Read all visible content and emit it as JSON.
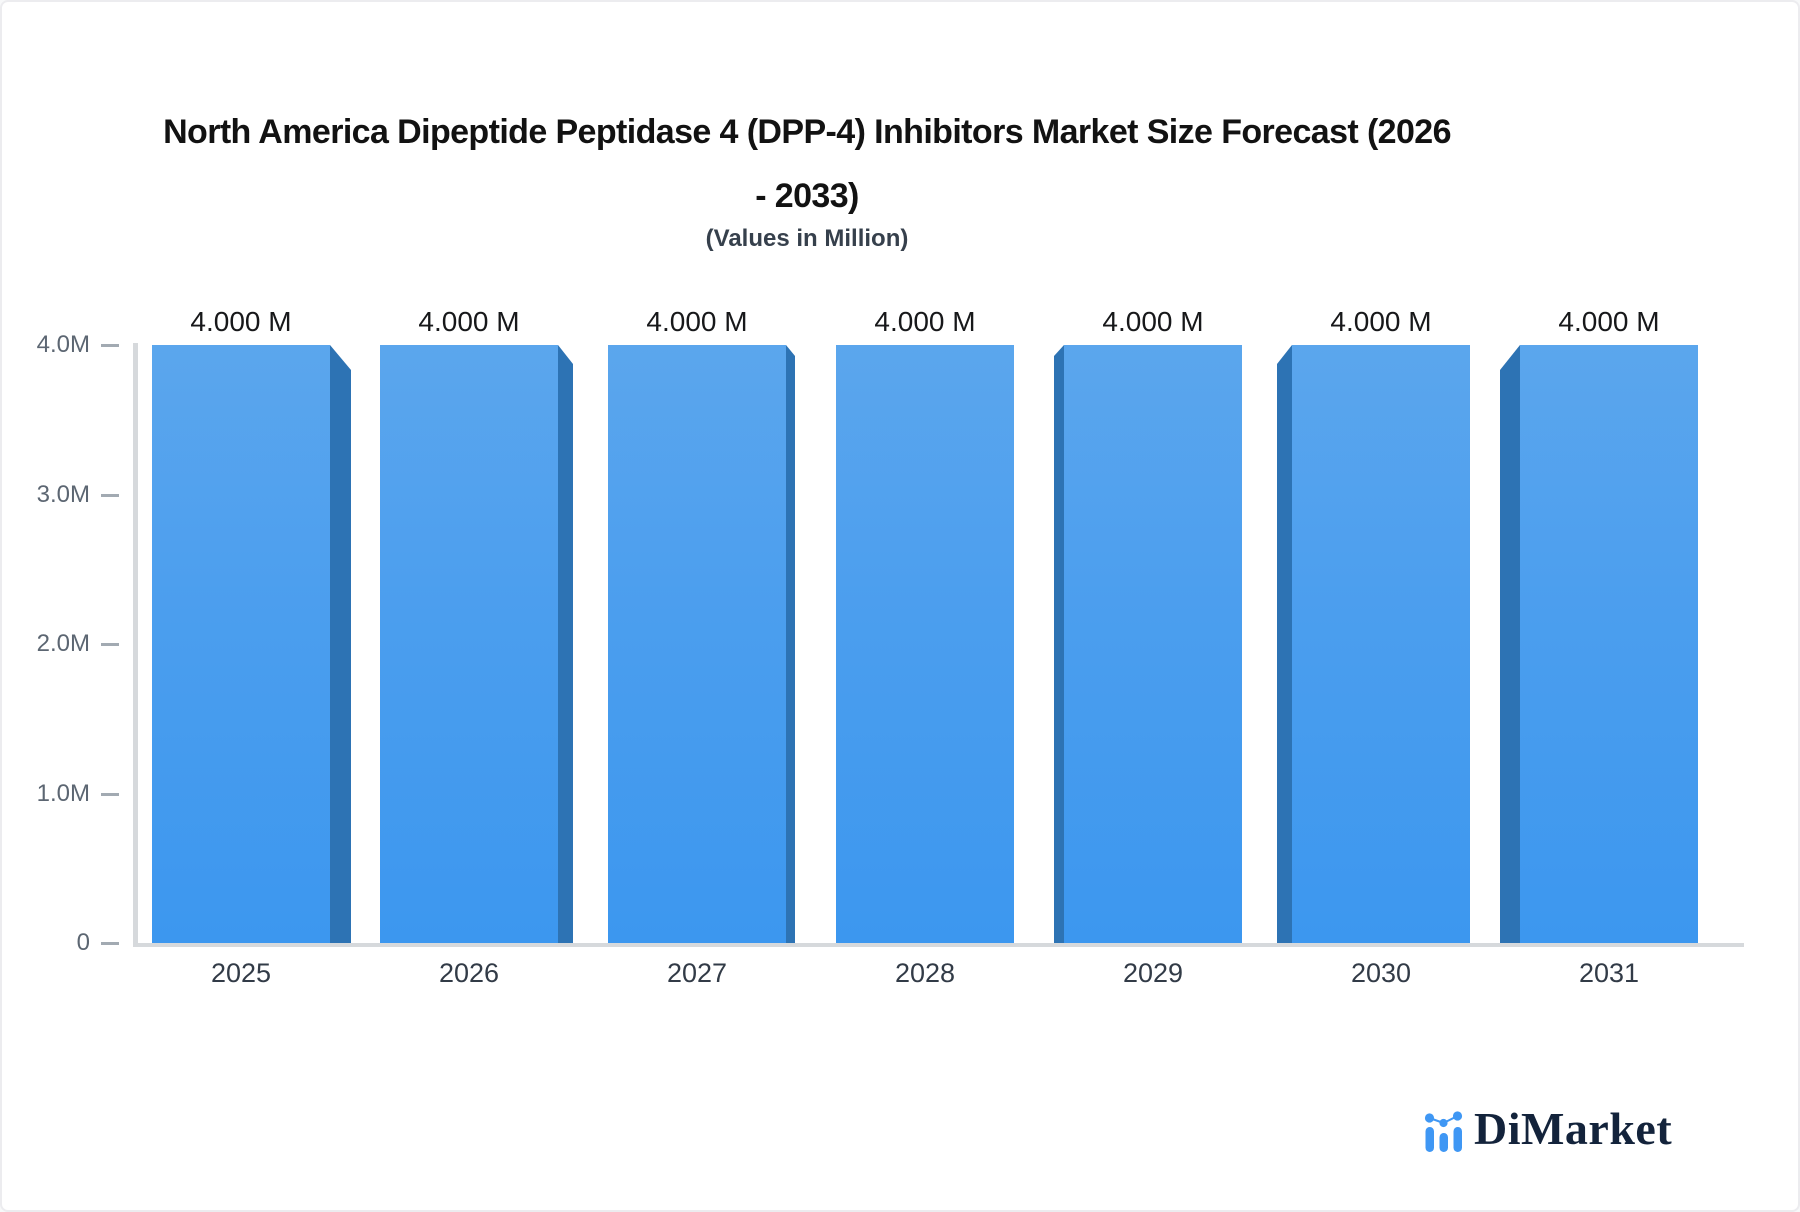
{
  "header": {
    "title_line1": "North America Dipeptide Peptidase 4 (DPP-4) Inhibitors Market Size Forecast (2026",
    "title_line2": "- 2033)",
    "subtitle": "(Values in Million)"
  },
  "chart_data": {
    "type": "bar",
    "style": "3d-column",
    "title": "North America Dipeptide Peptidase 4 (DPP-4) Inhibitors Market Size Forecast (2026 - 2033)",
    "subtitle": "(Values in Million)",
    "unit": "Million",
    "categories": [
      "2025",
      "2026",
      "2027",
      "2028",
      "2029",
      "2030",
      "2031"
    ],
    "values": [
      4.0,
      4.0,
      4.0,
      4.0,
      4.0,
      4.0,
      4.0
    ],
    "bar_labels": [
      "4.000 M",
      "4.000 M",
      "4.000 M",
      "4.000 M",
      "4.000 M",
      "4.000 M",
      "4.000 M"
    ],
    "ylim": [
      0,
      4.0
    ],
    "yticks": [
      {
        "value": 4.0,
        "label": "4.0M"
      },
      {
        "value": 3.0,
        "label": "3.0M"
      },
      {
        "value": 2.0,
        "label": "2.0M"
      },
      {
        "value": 1.0,
        "label": "1.0M"
      },
      {
        "value": 0,
        "label": "0"
      }
    ],
    "grid": false,
    "legend": false,
    "colors": {
      "bar_front_top": "#5ba6ed",
      "bar_front_bottom": "#3c97ef",
      "bar_side": "#2d73b4",
      "axis_line": "#d6d9dc",
      "tick_mark": "#a2aab2",
      "ytick_label": "#5c6672",
      "xtick_label": "#323b47",
      "bar_label": "#17181a",
      "title": "#121212",
      "subtitle": "#36404c"
    }
  },
  "branding": {
    "logo_text": "DiMarket",
    "logo_icon": "bar-chart-trend-icon",
    "logo_icon_color": "#3f97f4",
    "logo_text_color": "#13233b"
  }
}
